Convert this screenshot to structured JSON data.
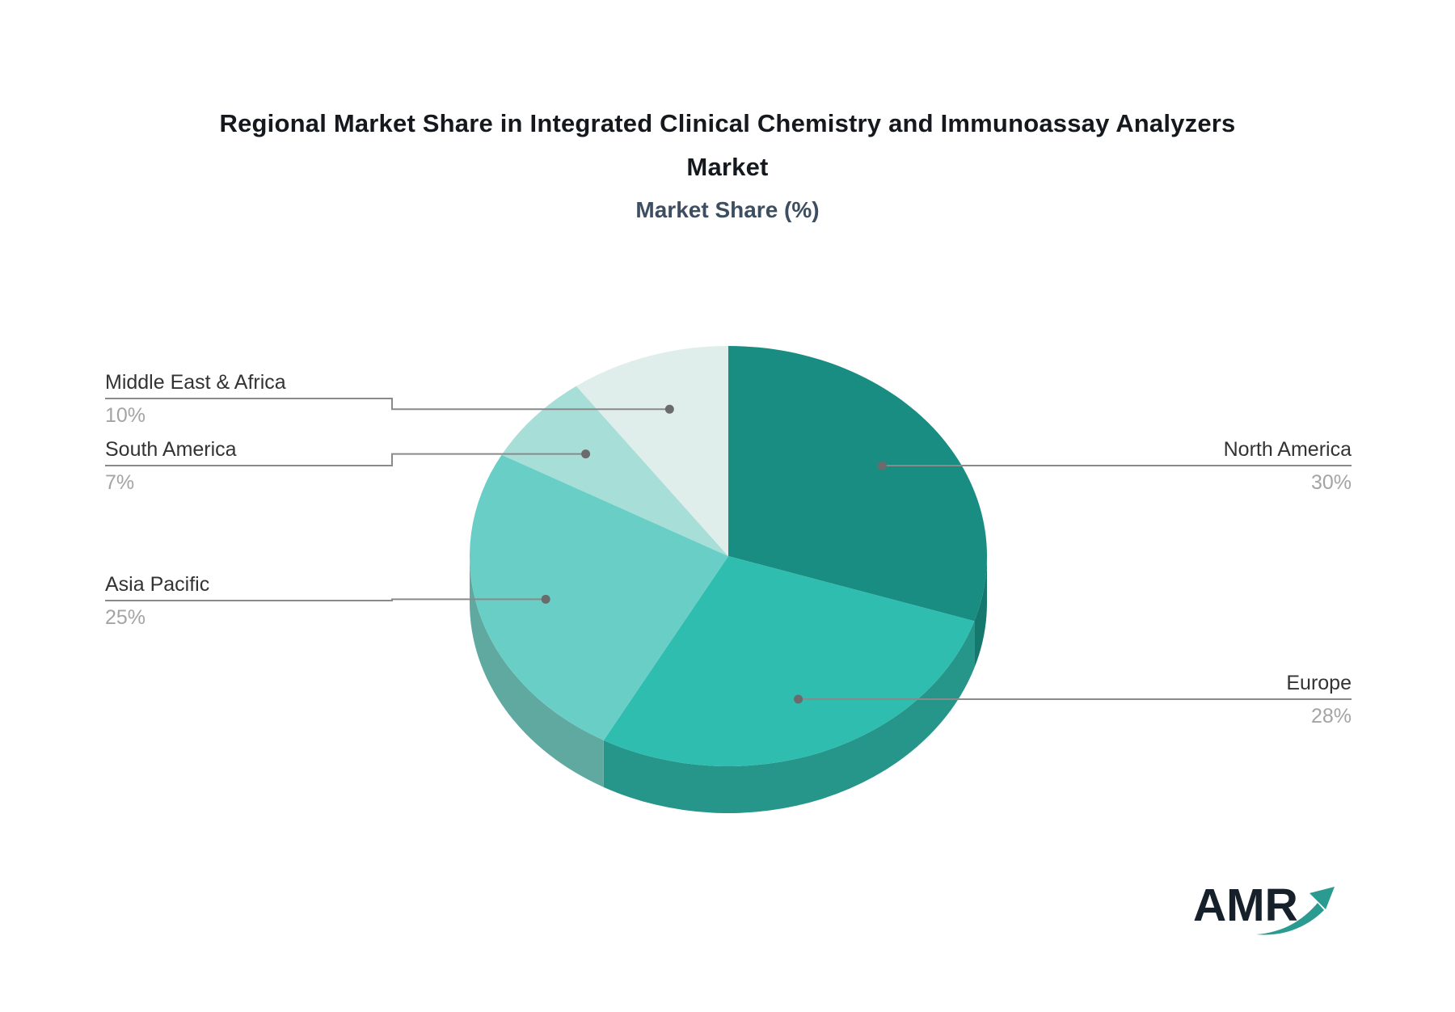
{
  "header": {
    "title_line1": "Regional Market Share in Integrated Clinical Chemistry and Immunoassay Analyzers",
    "title_line2": "Market",
    "subtitle": "Market Share (%)"
  },
  "chart_data": {
    "type": "pie",
    "title": "Regional Market Share in Integrated Clinical Chemistry and Immunoassay Analyzers Market",
    "subtitle": "Market Share (%)",
    "unit": "%",
    "style": "3d-pie",
    "start_angle_deg": 0,
    "direction": "clockwise",
    "legend_position": "callout-labels",
    "slices": [
      {
        "label": "North America",
        "value": 30,
        "display": "30%",
        "color": "#198d82",
        "rim_color": "#15786f"
      },
      {
        "label": "Europe",
        "value": 28,
        "display": "28%",
        "color": "#2fbdb0",
        "rim_color": "#26958a"
      },
      {
        "label": "Asia Pacific",
        "value": 25,
        "display": "25%",
        "color": "#69cfc6",
        "rim_color": "#5fa9a1"
      },
      {
        "label": "South America",
        "value": 7,
        "display": "7%",
        "color": "#a7ded8",
        "rim_color": "#7fb5ae"
      },
      {
        "label": "Middle East & Africa",
        "value": 10,
        "display": "10%",
        "color": "#e0eeeb",
        "rim_color": "#b0c6c2"
      }
    ]
  },
  "callout_style": {
    "line_color": "#8a8a8a",
    "dot_color": "#6b6b6b",
    "label_color": "#333333",
    "value_color": "#a4a4a4"
  },
  "branding": {
    "logo_text": "AMR",
    "logo_text_color": "#15202b",
    "logo_arrow_color": "#2b9a90"
  }
}
